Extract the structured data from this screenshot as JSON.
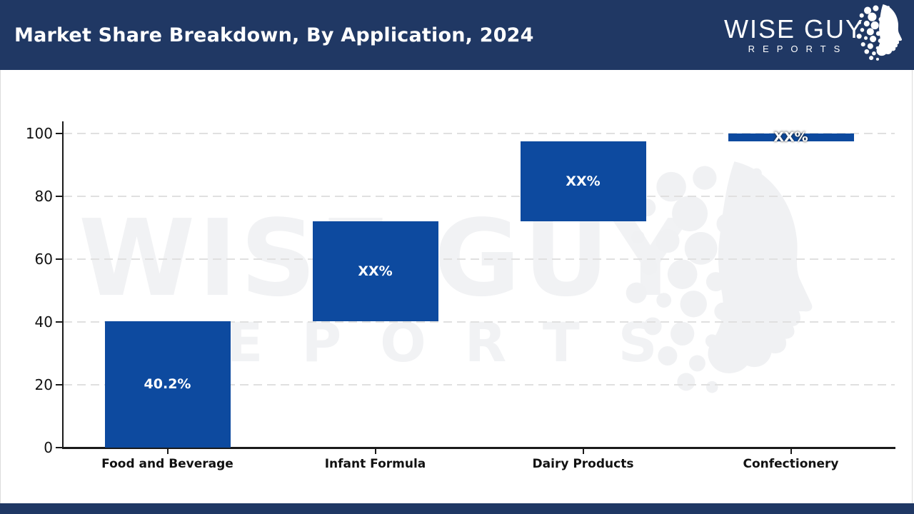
{
  "header": {
    "title": "Market Share Breakdown, By Application, 2024",
    "bg_color": "#203864",
    "logo": {
      "line1": "WISE GUY",
      "line2": "REPORTS"
    }
  },
  "watermark": {
    "line1": "WISE GUY",
    "line2": "REPORTS"
  },
  "chart_data": {
    "type": "bar",
    "subtype": "waterfall-breakdown",
    "title": "Market Share Breakdown, By Application, 2024",
    "categories": [
      "Food and Beverage",
      "Infant Formula",
      "Dairy Products",
      "Confectionery"
    ],
    "segments": [
      {
        "category": "Food and Beverage",
        "start": 0,
        "end": 40.2,
        "label": "40.2%"
      },
      {
        "category": "Infant Formula",
        "start": 40.2,
        "end": 72,
        "label": "XX%"
      },
      {
        "category": "Dairy Products",
        "start": 72,
        "end": 97.5,
        "label": "XX%"
      },
      {
        "category": "Confectionery",
        "start": 97.5,
        "end": 100,
        "label": "XX%"
      }
    ],
    "yticks": [
      0,
      20,
      40,
      60,
      80,
      100
    ],
    "ylim": [
      0,
      105
    ],
    "xlabel": "",
    "ylabel": "",
    "grid": "horizontal-dashed",
    "legend": "none",
    "bar_color": "#0d4a9f",
    "bar_label_color": "#ffffff",
    "axis_color": "#1a1a1a",
    "gridline_color": "#e0e0e0"
  }
}
